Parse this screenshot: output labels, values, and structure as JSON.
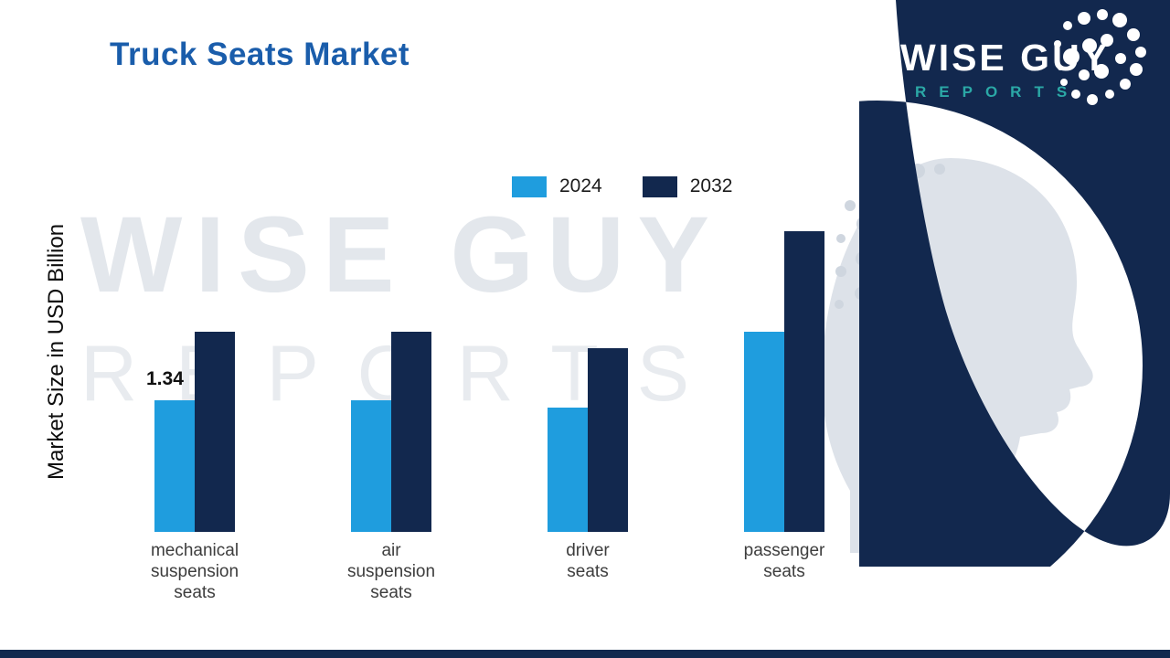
{
  "header": {
    "title": "Truck Seats Market",
    "title_color": "#1a5dab"
  },
  "brand": {
    "name_line1": "WISE GUY",
    "name_line2": "REPORTS",
    "bg_color": "#12284e",
    "reports_color": "#2ba8a6",
    "head_icon": "dotted-head-profile-icon"
  },
  "watermark": {
    "line1": "WISE GUY",
    "line2": "REPORTS"
  },
  "footer": {
    "bar_color": "#12284e"
  },
  "chart_data": {
    "type": "bar",
    "title": "Truck Seats Market",
    "ylabel": "Market Size in USD Billion",
    "xlabel": "",
    "unit": "USD Billion",
    "categories": [
      "mechanical suspension seats",
      "air suspension seats",
      "driver seats",
      "passenger seats"
    ],
    "series": [
      {
        "name": "2024",
        "color": "#1f9dde",
        "values": [
          1.34,
          1.34,
          1.27,
          2.04
        ]
      },
      {
        "name": "2032",
        "color": "#12284e",
        "values": [
          2.04,
          2.04,
          1.87,
          3.06
        ]
      }
    ],
    "data_labels": [
      {
        "series": "2024",
        "category": "mechanical suspension seats",
        "text": "1.34"
      }
    ],
    "ylim": [
      0,
      3.5
    ],
    "grid": false,
    "legend_position": "top-center"
  }
}
